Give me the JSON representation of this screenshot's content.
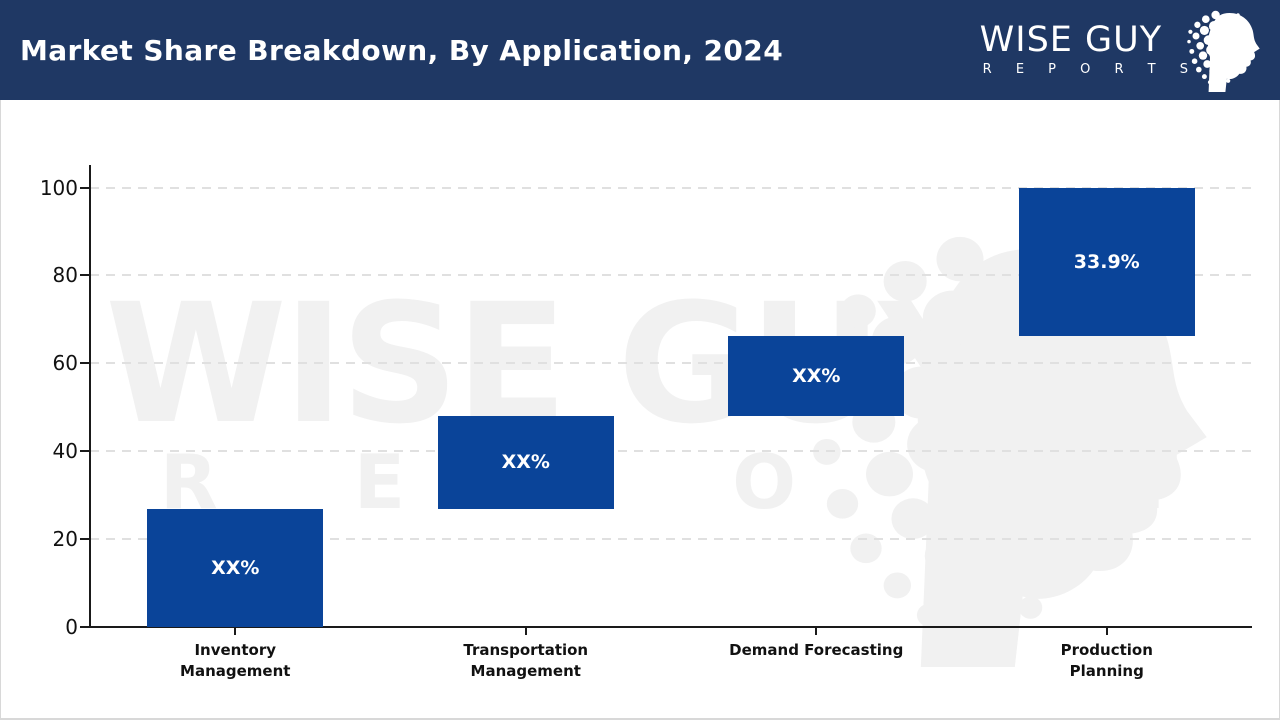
{
  "page": {
    "background": "#ffffff",
    "border_color": "#d8d8d8"
  },
  "header": {
    "background": "#1f3864",
    "title": "Market Share Breakdown, By Application, 2024",
    "logo": {
      "wordmark": "WISE GUY",
      "reports": "R E P O R T S"
    }
  },
  "watermark": {
    "wordmark": "WISE GUY",
    "reports": "R E P O R T S",
    "color": "#f1f1f1"
  },
  "chart_data": {
    "type": "bar",
    "subtype": "waterfall",
    "title": "Market Share Breakdown, By Application, 2024",
    "categories": [
      "Inventory Management",
      "Transportation Management",
      "Demand Forecasting",
      "Production Planning"
    ],
    "category_label_lines": [
      [
        "Inventory",
        "Management"
      ],
      [
        "Transportation",
        "Management"
      ],
      [
        "Demand Forecasting"
      ],
      [
        "Production",
        "Planning"
      ]
    ],
    "series": [
      {
        "name": "Market Share (%)",
        "segments": [
          {
            "category": "Inventory Management",
            "start": 0,
            "end": 26.8,
            "label": "XX%"
          },
          {
            "category": "Transportation Management",
            "start": 26.8,
            "end": 48.1,
            "label": "XX%"
          },
          {
            "category": "Demand Forecasting",
            "start": 48.1,
            "end": 66.1,
            "label": "XX%"
          },
          {
            "category": "Production Planning",
            "start": 66.1,
            "end": 100,
            "label": "33.9%"
          }
        ]
      }
    ],
    "bar_color": "#0a4499",
    "bar_label_color": "#ffffff",
    "ylim": [
      0,
      100
    ],
    "yticks": [
      0,
      20,
      40,
      60,
      80,
      100
    ],
    "grid": {
      "axis": "y",
      "style": "dashed",
      "color": "#e0e0e0"
    },
    "legend": "none"
  }
}
